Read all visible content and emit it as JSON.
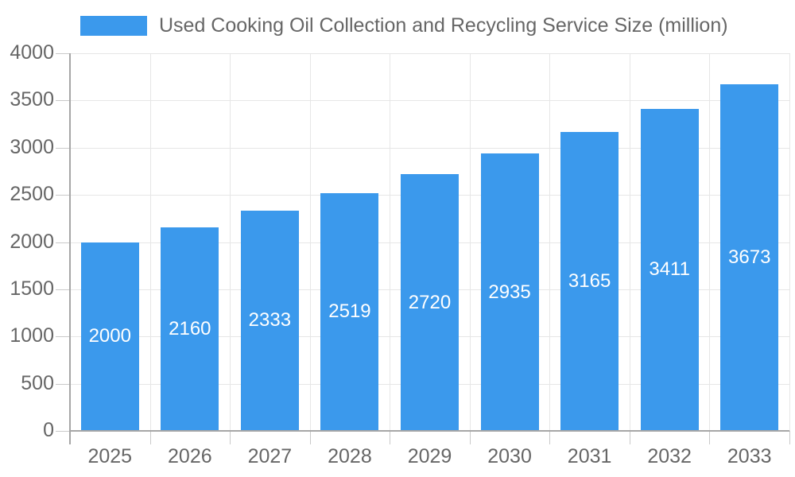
{
  "legend": {
    "label": "Used Cooking Oil Collection and Recycling Service Size (million)"
  },
  "chart_data": {
    "type": "bar",
    "title": "Used Cooking Oil Collection and Recycling Service Size (million)",
    "categories": [
      "2025",
      "2026",
      "2027",
      "2028",
      "2029",
      "2030",
      "2031",
      "2032",
      "2033"
    ],
    "values": [
      2000,
      2160,
      2333,
      2519,
      2720,
      2935,
      3165,
      3411,
      3673
    ],
    "xlabel": "",
    "ylabel": "",
    "ylim": [
      0,
      4000
    ],
    "yticks": [
      0,
      500,
      1000,
      1500,
      2000,
      2500,
      3000,
      3500,
      4000
    ],
    "grid": true,
    "legend_position": "top-left",
    "bar_color": "#3B99EC",
    "value_label_color": "#ffffff",
    "grid_color": "#e6e6e6",
    "axis_color": "#a6a6a6",
    "tick_color": "#c9c9c9",
    "text_color": "#666666"
  }
}
